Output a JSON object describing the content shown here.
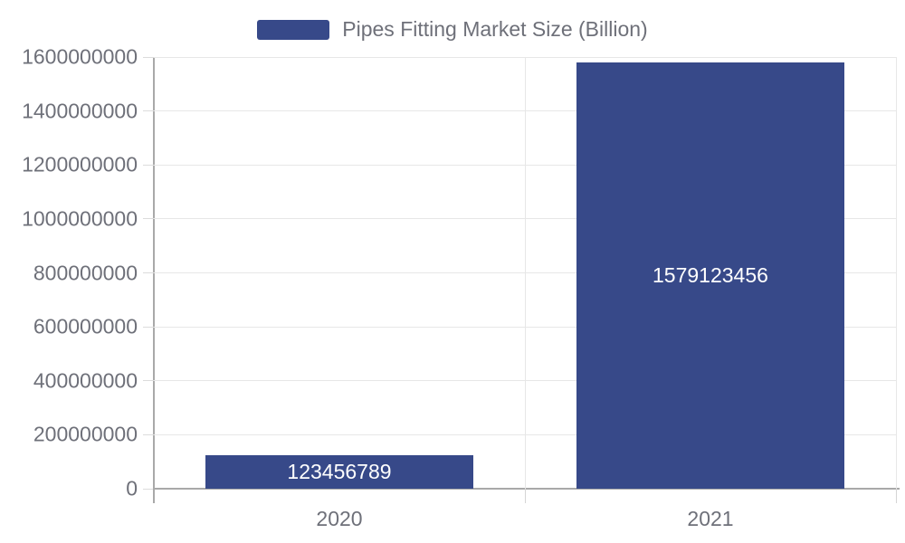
{
  "chart_data": {
    "type": "bar",
    "title": "Pipes Fitting Market Size (Billion)",
    "legend_entries": [
      "Pipes Fitting Market Size (Billion)"
    ],
    "legend_position": "top-center",
    "categories": [
      "2020",
      "2021"
    ],
    "values": [
      123456789,
      1579123456
    ],
    "bar_labels": [
      "123456789",
      "1579123456"
    ],
    "xlabel": "",
    "ylabel": "",
    "ylim": [
      0,
      1600000000
    ],
    "grid": true,
    "yticks": [
      {
        "value": 0,
        "label": "0"
      },
      {
        "value": 200000000,
        "label": "200000000"
      },
      {
        "value": 400000000,
        "label": "400000000"
      },
      {
        "value": 600000000,
        "label": "600000000"
      },
      {
        "value": 800000000,
        "label": "800000000"
      },
      {
        "value": 1000000000,
        "label": "1000000000"
      },
      {
        "value": 1200000000,
        "label": "1200000000"
      },
      {
        "value": 1400000000,
        "label": "1400000000"
      },
      {
        "value": 1600000000,
        "label": "1600000000"
      }
    ],
    "colors": {
      "bar": "#374989",
      "axis_text": "#6E7079",
      "bar_label_text": "#FFFFFF",
      "grid_line": "#E7E7E7",
      "axis_line": "#A9A9A9",
      "background": "#FFFFFF"
    }
  }
}
